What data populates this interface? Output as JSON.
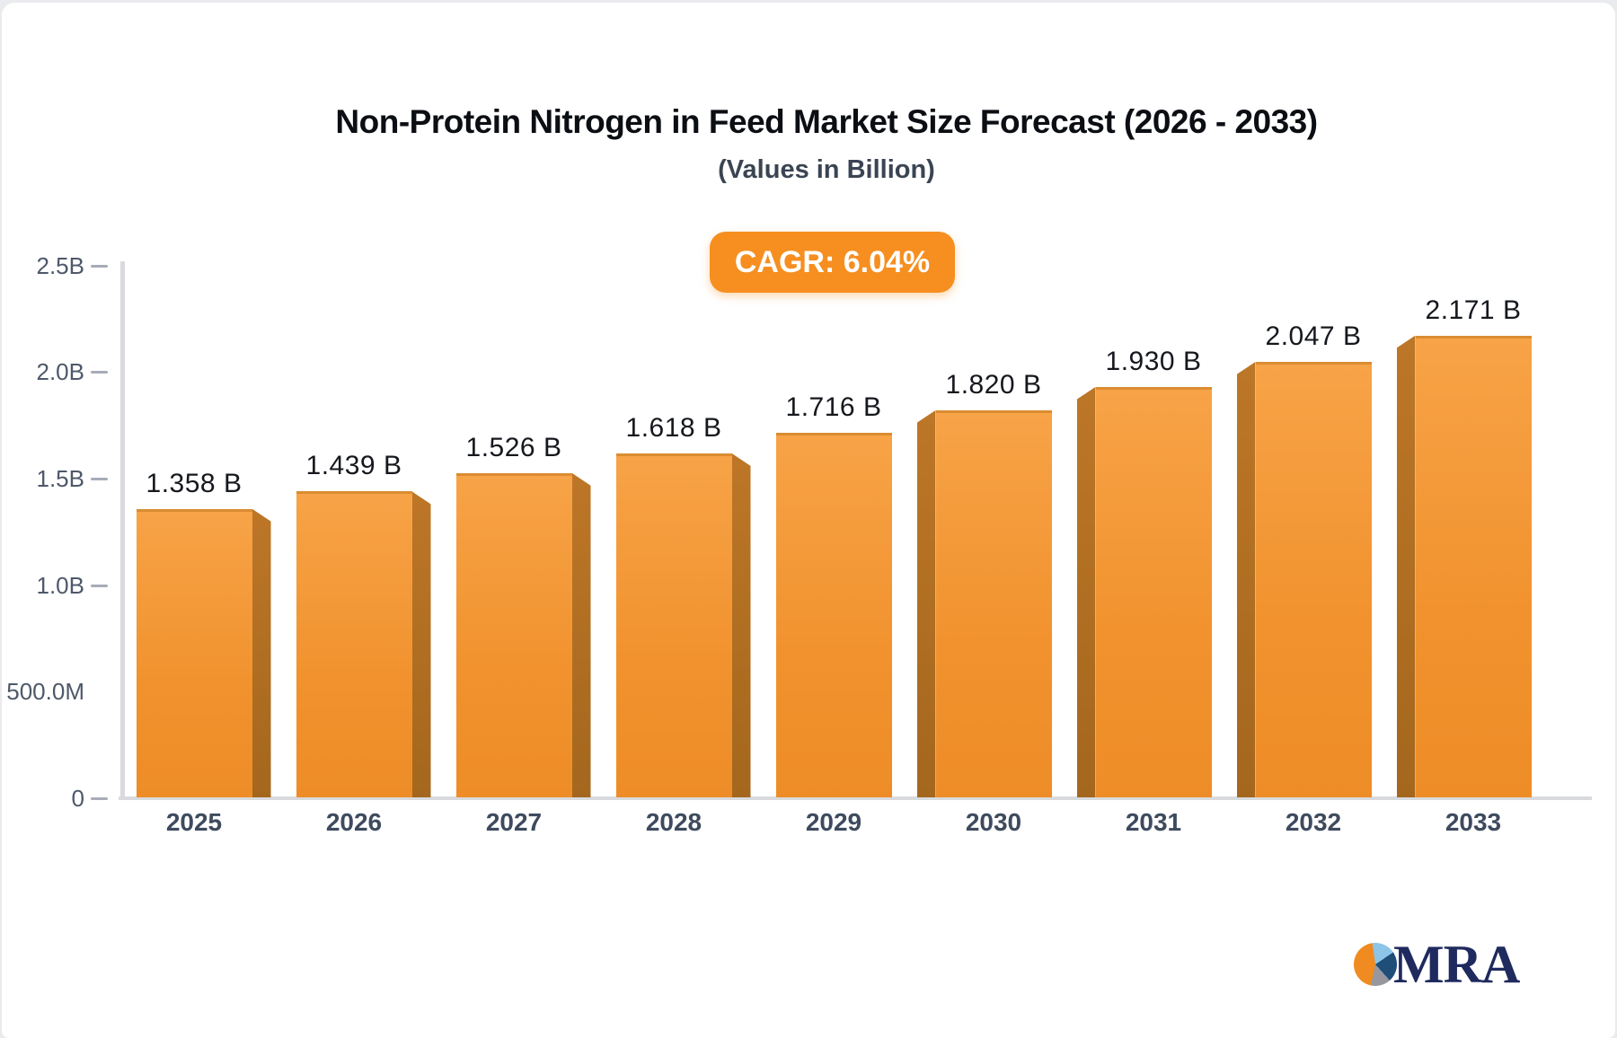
{
  "header": {
    "title": "Non-Protein Nitrogen in Feed Market Size Forecast (2026 - 2033)",
    "subtitle": "(Values in Billion)"
  },
  "badge": {
    "label": "CAGR: 6.04%"
  },
  "chart_data": {
    "type": "bar",
    "title": "Non-Protein Nitrogen in Feed Market Size Forecast (2026 - 2033)",
    "subtitle": "(Values in Billion)",
    "unit": "Billion USD",
    "cagr_percent": 6.04,
    "categories": [
      "2025",
      "2026",
      "2027",
      "2028",
      "2029",
      "2030",
      "2031",
      "2032",
      "2033"
    ],
    "values": [
      1.358,
      1.439,
      1.526,
      1.618,
      1.716,
      1.82,
      1.93,
      2.047,
      2.171
    ],
    "value_labels": [
      "1.358 B",
      "1.439 B",
      "1.526 B",
      "1.618 B",
      "1.716 B",
      "1.820 B",
      "1.930 B",
      "2.047 B",
      "2.171 B"
    ],
    "xlabel": "",
    "ylabel": "",
    "ylim": [
      0,
      2.5
    ],
    "grid": false,
    "legend": false,
    "y_ticks": [
      {
        "label": "2.5B",
        "value": 2.5,
        "dash": true
      },
      {
        "label": "2.0B",
        "value": 2.0,
        "dash": true
      },
      {
        "label": "1.5B",
        "value": 1.5,
        "dash": true
      },
      {
        "label": "1.0B",
        "value": 1.0,
        "dash": true
      },
      {
        "label": "500.0M",
        "value": 0.5,
        "dash": false
      },
      {
        "label": "0",
        "value": 0.0,
        "dash": true
      }
    ]
  },
  "colors": {
    "bar_top": "#f7a347",
    "bar_bottom": "#ee8d27",
    "bar_top_border": "#db8c31",
    "bar_side_dark": "#a4671d",
    "bar_side_light": "#bd7627",
    "badge_orange": "#f68f20",
    "axis_gray": "#d9dade",
    "tick_gray": "#a6acb8",
    "title_text": "#0b0e13",
    "axis_label_text": "#4e586a",
    "year_label_text": "#3e4a5e",
    "logo_navy": "#1f2a5e",
    "logo_lightblue": "#8cc5e8",
    "logo_gray": "#96989d",
    "logo_orange": "#ef8b20"
  },
  "logo": {
    "text": "MRA"
  }
}
